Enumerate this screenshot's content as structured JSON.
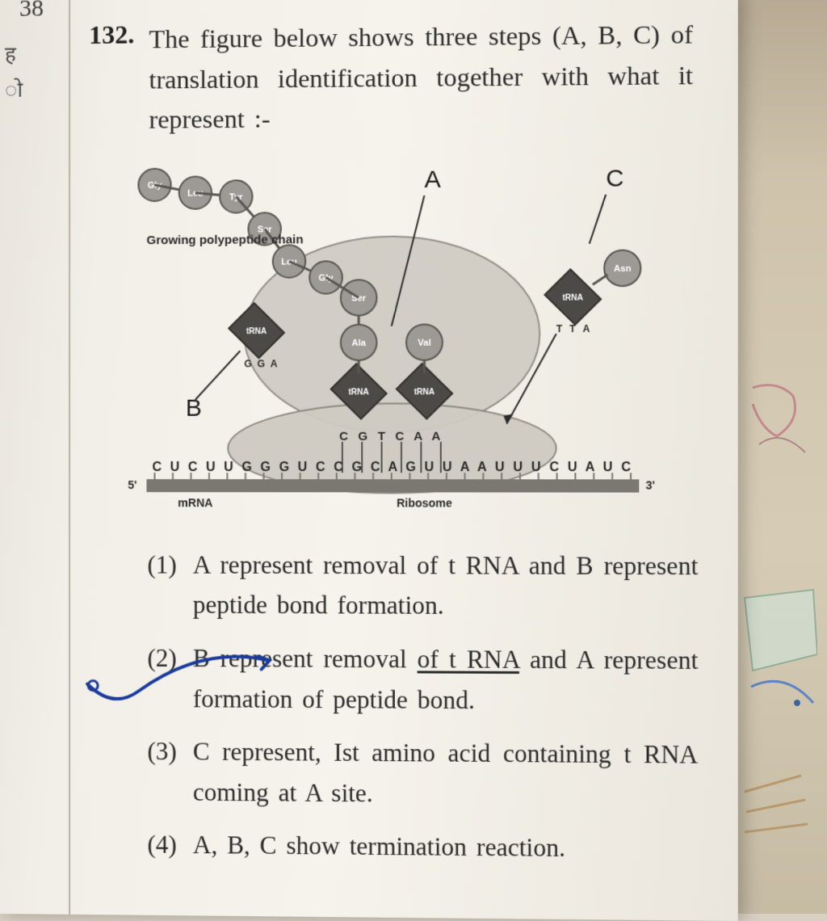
{
  "fragments": {
    "top_left": "38",
    "side1": "ह",
    "side2": "ो"
  },
  "question": {
    "number": "132.",
    "text": "The figure below shows three steps (A, B, C) of translation identification together with what it represent :-"
  },
  "diagram": {
    "labels": {
      "A": "A",
      "B": "B",
      "C": "C",
      "chain_label": "Growing polypeptide chain",
      "mrna_label": "mRNA",
      "ribosome_label": "Ribosome",
      "five_prime": "5'",
      "three_prime": "3'"
    },
    "amino_acids_chain": [
      "Gly",
      "Leu",
      "Tyr",
      "Ser",
      "Leu",
      "Gly"
    ],
    "ribosome_aa": [
      "Ser",
      "Ala",
      "Val"
    ],
    "incoming_aa": "Asn",
    "trna_labels": [
      "tRNA",
      "tRNA",
      "tRNA",
      "tRNA"
    ],
    "codons_in_ribosome": "C G T   C A A",
    "mrna_seq": "C U C U U G G G U C C G C A G U U A A U U U C U A U C",
    "anticodon_left": [
      "G",
      "G",
      "A"
    ],
    "anticodon_right": [
      "T",
      "T",
      "A"
    ],
    "colors": {
      "aa_circle": "#9d9a96",
      "aa_stroke": "#595651",
      "trna_box": "#4c4a47",
      "ribosome_body": "#cfcac2",
      "ribosome_stroke": "#8c877d",
      "mrna_bar": "#7b7872",
      "text_dark": "#2b2b2b",
      "label_letter": "#1d1d1d",
      "pen_blue": "#1b3b9c"
    },
    "font": {
      "label_letter_pt": 30,
      "small_label_pt": 14,
      "chain_label_pt": 15,
      "seq_pt": 16,
      "aa_text_pt": 11
    }
  },
  "options": [
    {
      "n": "(1)",
      "text": "A represent removal of t RNA and B represent peptide bond formation."
    },
    {
      "n": "(2)",
      "text_pre": "B represent removal ",
      "text_mid": "of t RNA",
      "text_post": " and A represent formation of peptide bond."
    },
    {
      "n": "(3)",
      "text": "C represent, Ist amino acid containing t RNA coming at A site."
    },
    {
      "n": "(4)",
      "text": "A, B, C show termination reaction."
    }
  ],
  "meta": {
    "page_bg": "#f2efe8",
    "outer_bg": "#d8d0c2"
  }
}
